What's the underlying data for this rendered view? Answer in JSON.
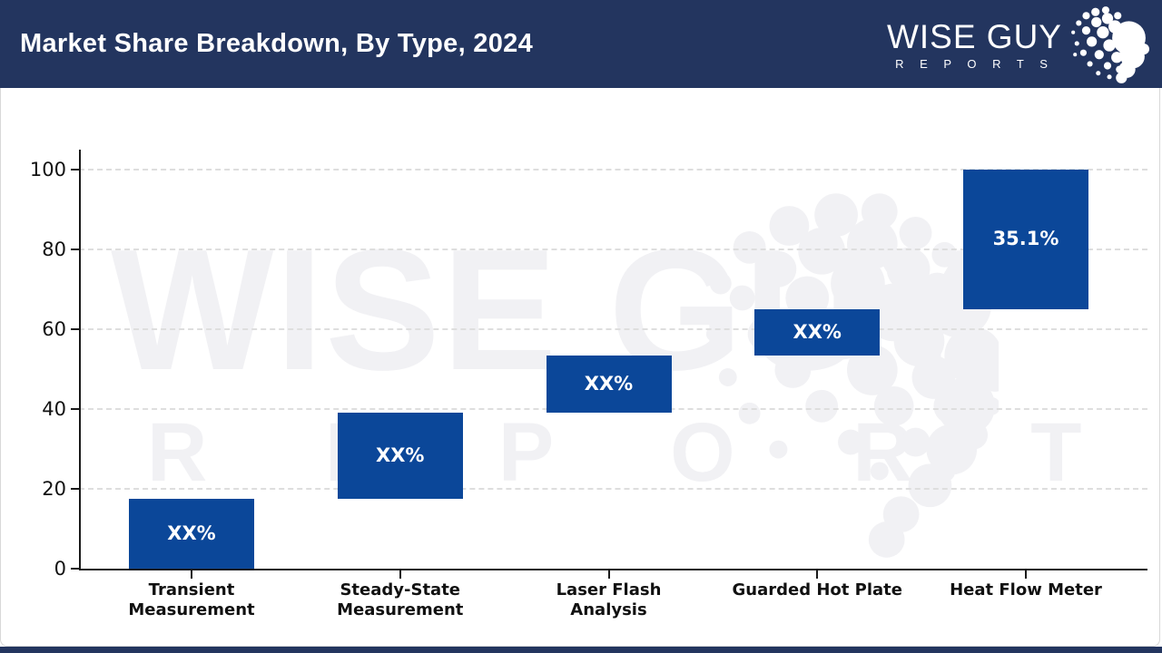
{
  "header": {
    "title": "Market Share Breakdown, By Type, 2024",
    "logo_line1": "WISE GUY",
    "logo_line2": "R E P O R T S",
    "bg_color": "#23355F",
    "text_color": "#ffffff"
  },
  "watermark": {
    "line1": "WISE GUY",
    "line2": "R E P O R T S"
  },
  "chart_data": {
    "type": "bar",
    "variant": "waterfall",
    "title": "Market Share Breakdown, By Type, 2024",
    "categories": [
      "Transient Measurement",
      "Steady-State Measurement",
      "Laser Flash Analysis",
      "Guarded Hot Plate",
      "Heat Flow Meter"
    ],
    "category_lines": [
      [
        "Transient",
        "Measurement"
      ],
      [
        "Steady-State",
        "Measurement"
      ],
      [
        "Laser Flash",
        "Analysis"
      ],
      [
        "Guarded Hot Plate"
      ],
      [
        "Heat Flow Meter"
      ]
    ],
    "series": [
      {
        "name": "Market share (%)",
        "segments": [
          {
            "category": "Transient Measurement",
            "start": 0,
            "end": 17.5,
            "label": "XX%"
          },
          {
            "category": "Steady-State Measurement",
            "start": 17.5,
            "end": 39.0,
            "label": "XX%"
          },
          {
            "category": "Laser Flash Analysis",
            "start": 39.0,
            "end": 53.5,
            "label": "XX%"
          },
          {
            "category": "Guarded Hot Plate",
            "start": 53.5,
            "end": 64.9,
            "label": "XX%"
          },
          {
            "category": "Heat Flow Meter",
            "start": 64.9,
            "end": 100.0,
            "label": "35.1%"
          }
        ]
      }
    ],
    "xlabel": "",
    "ylabel": "",
    "ylim": [
      0,
      100
    ],
    "yticks": [
      0,
      20,
      40,
      60,
      80,
      100
    ],
    "grid": "horizontal-dashed",
    "legend": "none",
    "bar_color": "#0b4799",
    "value_label_color": "#ffffff",
    "axis_color": "#1a1a1a",
    "gridline_color": "#dedede"
  }
}
